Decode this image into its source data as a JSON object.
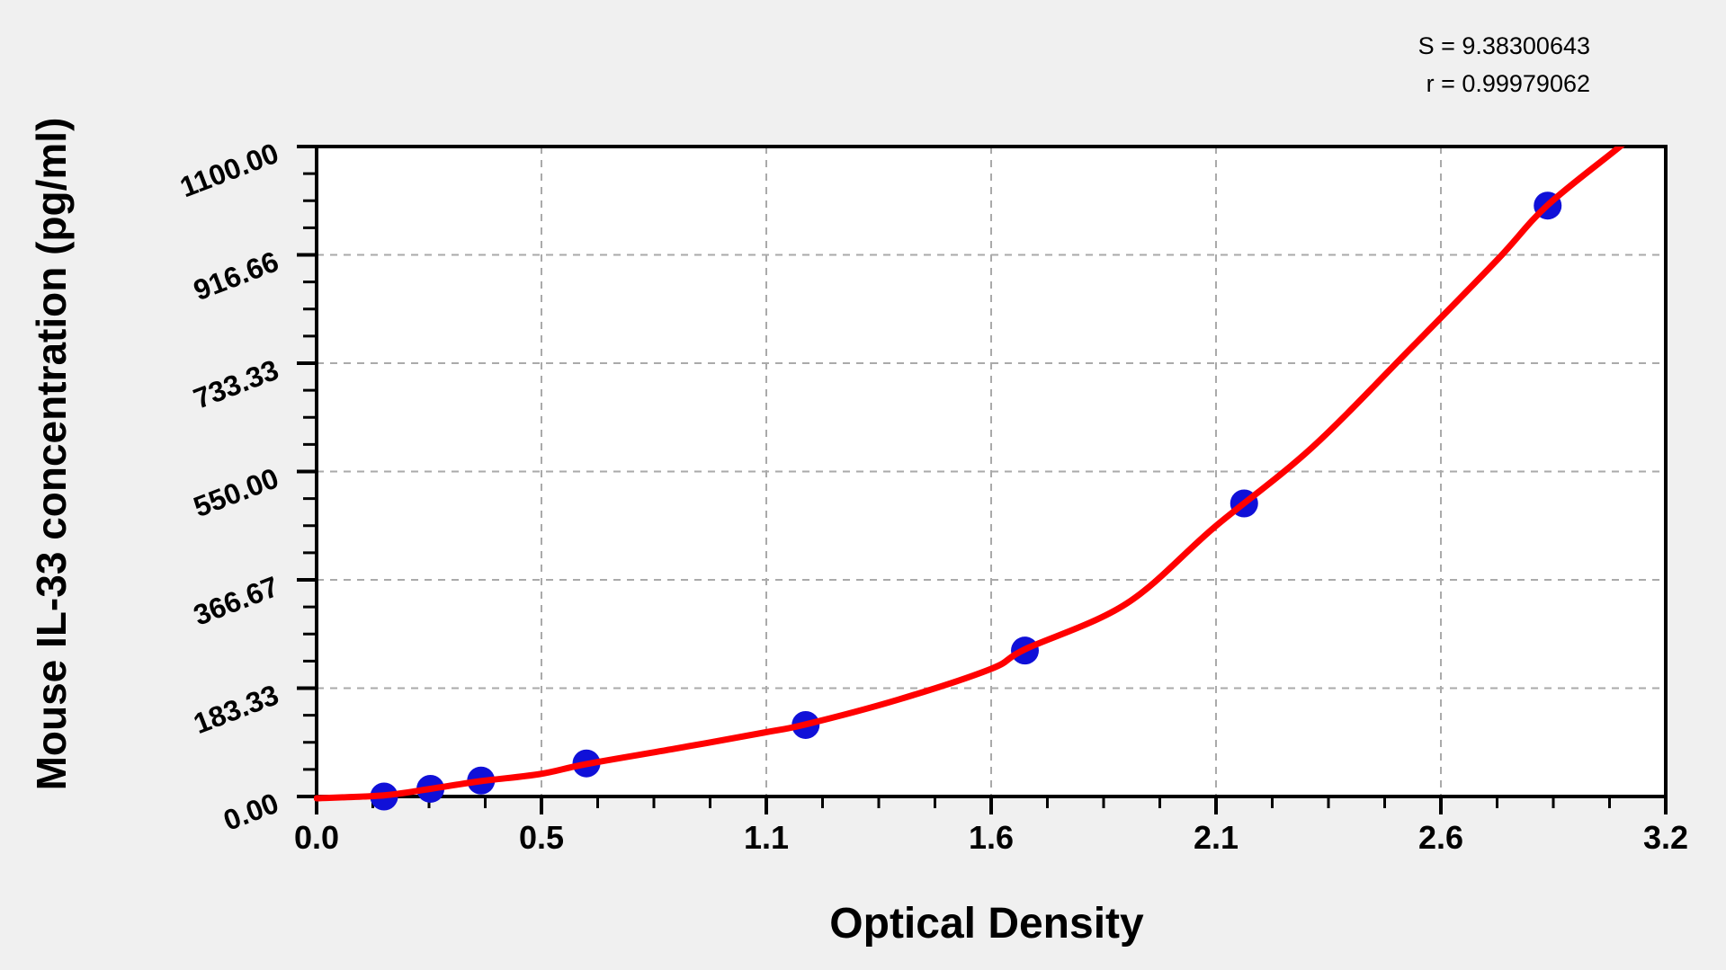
{
  "annotations": {
    "s_line": "S = 9.38300643",
    "r_line": "r = 0.99979062"
  },
  "chart_data": {
    "type": "scatter",
    "title": "",
    "xlabel": "Optical Density",
    "ylabel": "Mouse IL-33 concentration (pg/ml)",
    "xlim": [
      0,
      3.2
    ],
    "ylim": [
      0,
      1100
    ],
    "x_tick_labels": [
      "0.0",
      "0.5",
      "1.1",
      "1.6",
      "2.1",
      "2.6",
      "3.2"
    ],
    "y_tick_labels": [
      "0.00",
      "183.33",
      "366.67",
      "550.00",
      "733.33",
      "916.66",
      "1100.00"
    ],
    "minor_ticks_per_major": 4,
    "grid": "dashed-major",
    "legend": "none",
    "fit": {
      "S": 9.38300643,
      "r": 0.99979062
    },
    "series": [
      {
        "name": "standard-points",
        "kind": "scatter",
        "color": "#1010d8",
        "points": [
          [
            0.16,
            0
          ],
          [
            0.27,
            13
          ],
          [
            0.39,
            27
          ],
          [
            0.64,
            56
          ],
          [
            1.16,
            121
          ],
          [
            1.68,
            247
          ],
          [
            2.2,
            496
          ],
          [
            2.92,
            1000
          ]
        ]
      },
      {
        "name": "fitted-curve",
        "kind": "line",
        "color": "#ff0000",
        "points": [
          [
            0,
            -3
          ],
          [
            0.16,
            2
          ],
          [
            0.27,
            13
          ],
          [
            0.39,
            26
          ],
          [
            0.53,
            38
          ],
          [
            0.64,
            55
          ],
          [
            0.85,
            81
          ],
          [
            1.06,
            108
          ],
          [
            1.16,
            122
          ],
          [
            1.38,
            164
          ],
          [
            1.6,
            216
          ],
          [
            1.68,
            249
          ],
          [
            1.92,
            326
          ],
          [
            2.13,
            456
          ],
          [
            2.36,
            590
          ],
          [
            2.6,
            762
          ],
          [
            2.8,
            908
          ],
          [
            2.92,
            1001
          ],
          [
            3.1,
            1105
          ],
          [
            3.14,
            1135
          ]
        ]
      }
    ]
  },
  "colors": {
    "background": "#f0f0f0",
    "plot_background": "#ffffff",
    "axis": "#000000",
    "grid": "#aaaaaa",
    "curve": "#ff0000",
    "points": "#1010d8",
    "text": "#000000"
  }
}
